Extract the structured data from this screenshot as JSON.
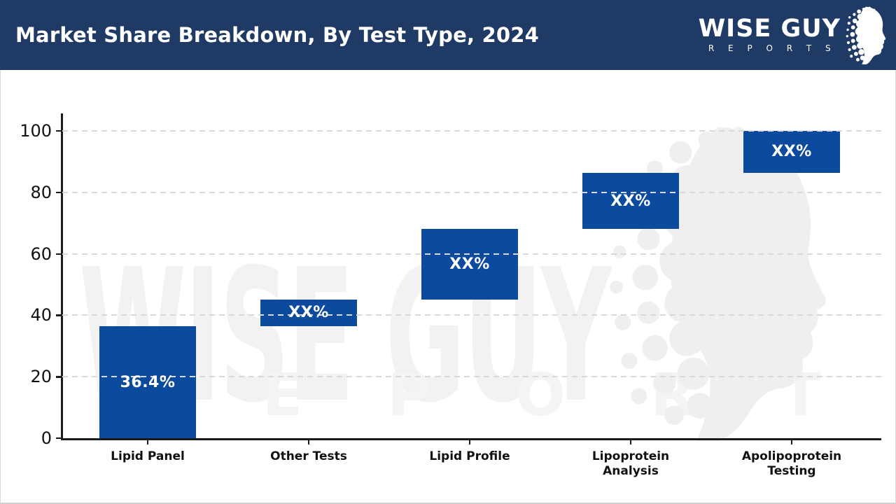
{
  "header": {
    "title": "Market Share Breakdown, By Test Type, 2024",
    "logo": {
      "line1": "WISE GUY",
      "line2": "R E P O R T S"
    }
  },
  "watermark": {
    "line1": "WISE GUY",
    "line2": "R E P O R T S"
  },
  "colors": {
    "header_bg": "#203a66",
    "bar": "#0c4a9e",
    "grid": "#d9d9d9",
    "axis": "#1a1a1a",
    "bar_label_text": "#ffffff",
    "title_text": "#ffffff",
    "watermark": "#f2f2f2"
  },
  "chart_data": {
    "type": "bar",
    "subtype": "waterfall",
    "title": "Market Share Breakdown, By Test Type, 2024",
    "xlabel": "",
    "ylabel": "",
    "ylim": [
      0,
      100
    ],
    "yticks": [
      0,
      20,
      40,
      60,
      80,
      100
    ],
    "grid": "horizontal-dashed",
    "legend": false,
    "categories": [
      "Lipid Panel",
      "Other Tests",
      "Lipid Profile",
      "Lipoprotein Analysis",
      "Apolipoprotein Testing"
    ],
    "segments": [
      {
        "category": "Lipid Panel",
        "start": 0,
        "end": 36.4,
        "label": "36.4%"
      },
      {
        "category": "Other Tests",
        "start": 36.4,
        "end": 45.2,
        "label": "XX%"
      },
      {
        "category": "Lipid Profile",
        "start": 45.2,
        "end": 68.0,
        "label": "XX%"
      },
      {
        "category": "Lipoprotein Analysis",
        "start": 68.0,
        "end": 86.4,
        "label": "XX%"
      },
      {
        "category": "Apolipoprotein Testing",
        "start": 86.4,
        "end": 100,
        "label": "XX%"
      }
    ]
  }
}
